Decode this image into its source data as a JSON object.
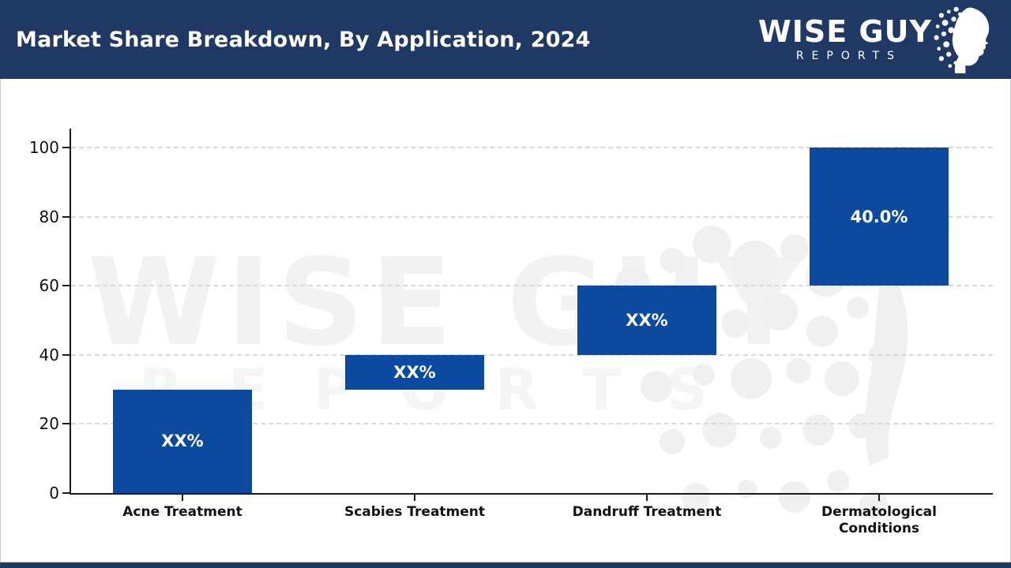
{
  "header": {
    "title": "Market Share Breakdown, By Application, 2024",
    "logo": {
      "line1": "WISE GUY",
      "line2": "REPORTS"
    }
  },
  "watermark": {
    "line1": "WISE GUY",
    "line2": "REPORTS"
  },
  "chart_data": {
    "type": "bar",
    "subtype": "waterfall",
    "title": "Market Share Breakdown, By Application, 2024",
    "xlabel": "",
    "ylabel": "",
    "ylim": [
      0,
      105
    ],
    "yticks": [
      0,
      20,
      40,
      60,
      80,
      100
    ],
    "grid": "horizontal-dashed",
    "legend": "none",
    "categories": [
      "Acne Treatment",
      "Scabies Treatment",
      "Dandruff Treatment",
      "Dermatological Conditions"
    ],
    "bars": [
      {
        "category": "Acne Treatment",
        "start": 0,
        "end": 30,
        "label": "XX%"
      },
      {
        "category": "Scabies Treatment",
        "start": 30,
        "end": 40,
        "label": "XX%"
      },
      {
        "category": "Dandruff Treatment",
        "start": 40,
        "end": 60,
        "label": "XX%"
      },
      {
        "category": "Dermatological Conditions",
        "start": 60,
        "end": 100,
        "label": "40.0%"
      }
    ],
    "bar_color": "#0b4a9f"
  },
  "colors": {
    "header_bg": "#1f3864",
    "footer_bg": "#1f3864",
    "bar": "#0b4a9f",
    "grid": "#d9d9d9",
    "axis": "#1a1a1a",
    "text": "#111111",
    "watermark": "#f2f2f2",
    "frame": "#c9c9c9"
  }
}
